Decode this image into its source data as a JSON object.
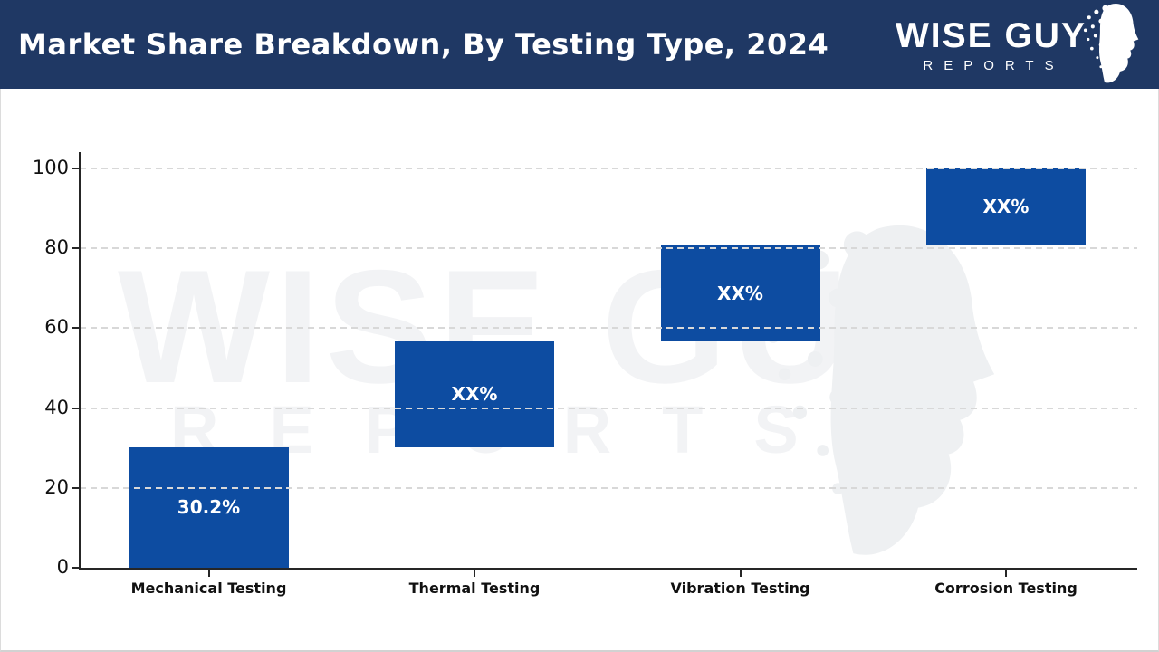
{
  "header": {
    "title": "Market Share Breakdown, By Testing Type, 2024",
    "bg_color": "#1f3864",
    "logo": {
      "line1": "WISE GUY",
      "line2": "REPORTS"
    }
  },
  "watermark": {
    "line1": "WISE GUY",
    "line2": "REPORTS"
  },
  "chart_data": {
    "type": "bar",
    "subtype": "waterfall",
    "title": "Market Share Breakdown, By Testing Type, 2024",
    "categories": [
      "Mechanical Testing",
      "Thermal Testing",
      "Vibration Testing",
      "Corrosion Testing"
    ],
    "bars": [
      {
        "category": "Mechanical Testing",
        "start": 0,
        "end": 30.2,
        "label": "30.2%"
      },
      {
        "category": "Thermal Testing",
        "start": 30.2,
        "end": 56.7,
        "label": "XX%"
      },
      {
        "category": "Vibration Testing",
        "start": 56.7,
        "end": 80.8,
        "label": "XX%"
      },
      {
        "category": "Corrosion Testing",
        "start": 80.8,
        "end": 100,
        "label": "XX%"
      }
    ],
    "xlabel": "",
    "ylabel": "",
    "yticks": [
      0,
      20,
      40,
      60,
      80,
      100
    ],
    "ylim": [
      0,
      104
    ],
    "grid": "horizontal-dashed",
    "legend": "none",
    "bar_color": "#0d4ca1",
    "label_color": "#ffffff",
    "axis_color": "#262626",
    "gridline_color": "#d8d8d8"
  }
}
